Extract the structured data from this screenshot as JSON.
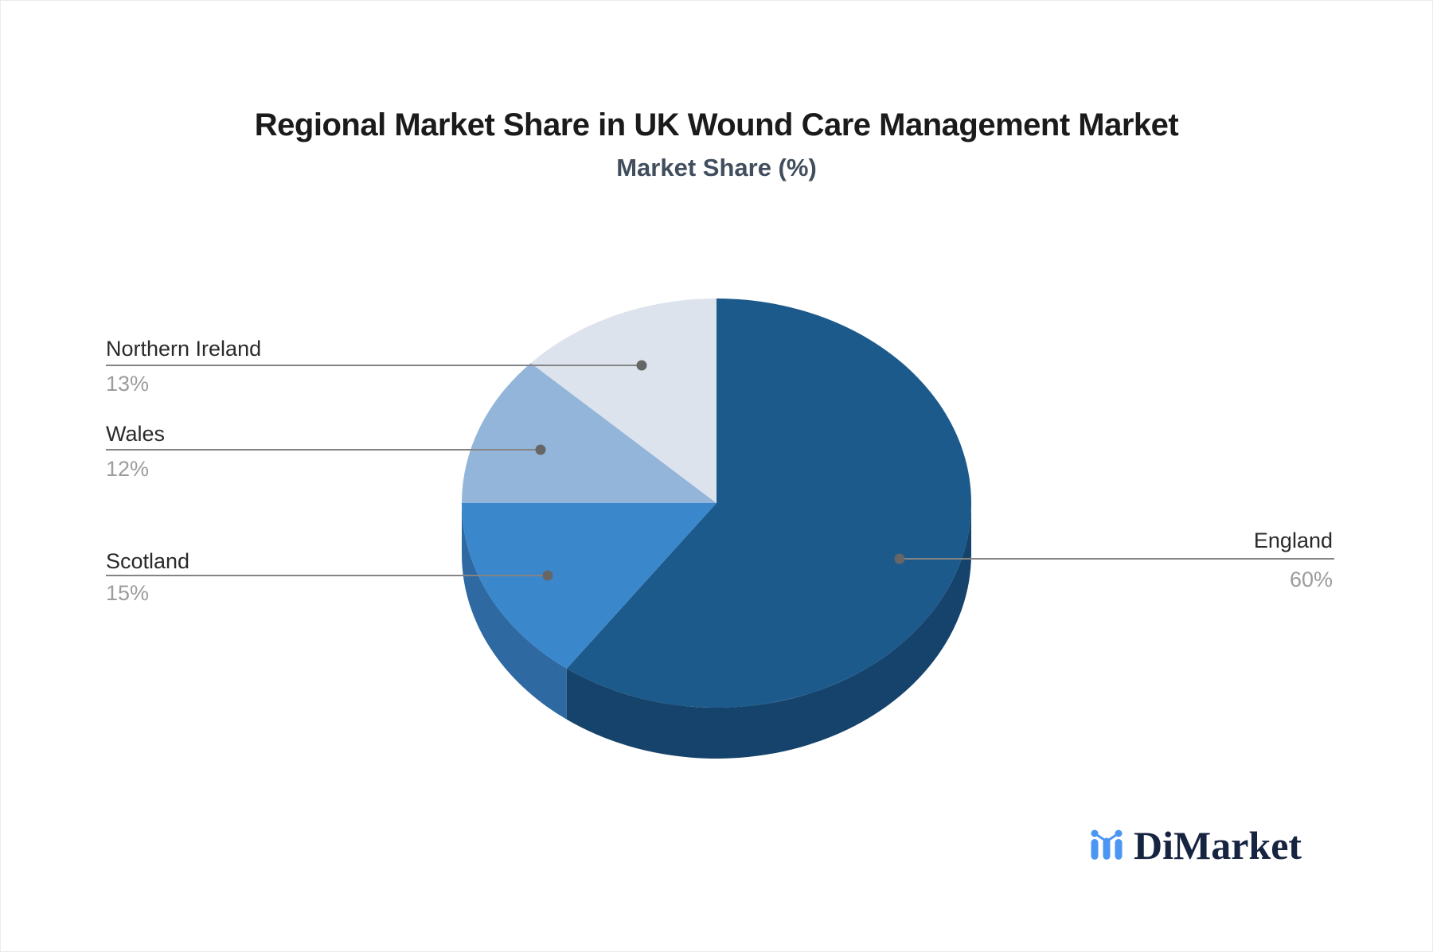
{
  "header": {
    "title": "Regional Market Share in UK Wound Care Management Market",
    "subtitle": "Market Share (%)"
  },
  "chart_data": {
    "type": "pie",
    "effect": "3d",
    "title": "Regional Market Share in UK Wound Care Management Market",
    "subtitle": "Market Share (%)",
    "unit": "%",
    "start_angle_deg": 0,
    "direction": "clockwise",
    "legend_position": "none",
    "slices": [
      {
        "label": "England",
        "value": 60,
        "pct_label": "60%",
        "color": "#1d5a8c",
        "side_color": "#16436b"
      },
      {
        "label": "Scotland",
        "value": 15,
        "pct_label": "15%",
        "color": "#3b87cc",
        "side_color": "#2e69a1"
      },
      {
        "label": "Wales",
        "value": 12,
        "pct_label": "12%",
        "color": "#93b5d9",
        "side_color": "#7493b1"
      },
      {
        "label": "Northern Ireland",
        "value": 13,
        "pct_label": "13%",
        "color": "#dde3ed",
        "side_color": "#b4bac4"
      }
    ],
    "label_style": {
      "name_color": "#2a2a2a",
      "pct_color": "#9c9c9c",
      "leader_line_color": "#848484",
      "leader_dot_color": "#666666"
    }
  },
  "branding": {
    "logo_text": "DiMarket",
    "logo_icon": "bar-line-chart-icon",
    "logo_text_color": "#172441",
    "logo_icon_color": "#4b96f3"
  }
}
